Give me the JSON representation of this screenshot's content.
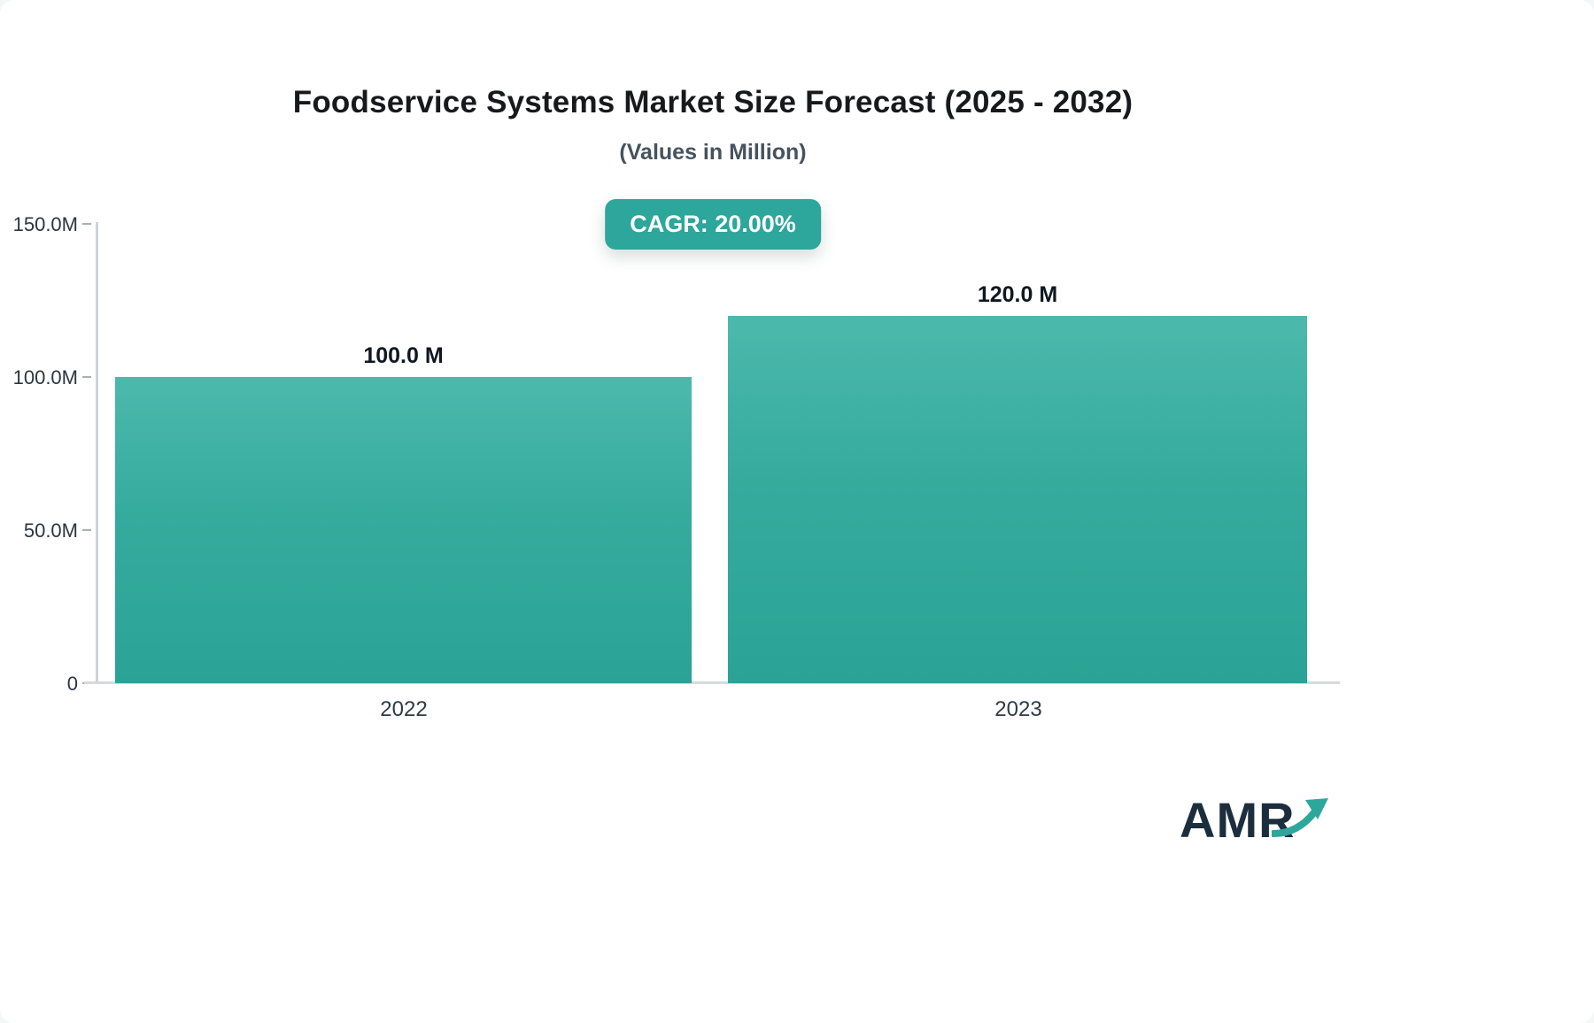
{
  "header": {
    "title": "Foodservice Systems Market Size Forecast (2025 - 2032)",
    "subtitle": "(Values in Million)"
  },
  "badge": {
    "label": "CAGR: 20.00%"
  },
  "chart_data": {
    "type": "bar",
    "title": "Foodservice Systems Market Size Forecast (2025 - 2032)",
    "subtitle": "(Values in Million)",
    "cagr": "20.00%",
    "categories": [
      "2022",
      "2023"
    ],
    "values": [
      100,
      120
    ],
    "value_labels": [
      "100.0 M",
      "120.0 M"
    ],
    "unit": "Million",
    "ylim": [
      0,
      150
    ],
    "yticks": [
      {
        "label": "150.0M",
        "value": 150
      },
      {
        "label": "100.0M",
        "value": 100
      },
      {
        "label": "50.0M",
        "value": 50
      },
      {
        "label": "0",
        "value": 0
      }
    ],
    "grid": false,
    "legend": false,
    "bar_color_top": "#4cb9ac",
    "bar_color_bottom": "#2aa396"
  },
  "logo": {
    "text": "AMR"
  },
  "colors": {
    "accent_teal": "#2da69b",
    "logo_navy": "#1c2e3d",
    "axis_gray": "#ccd3d8"
  }
}
